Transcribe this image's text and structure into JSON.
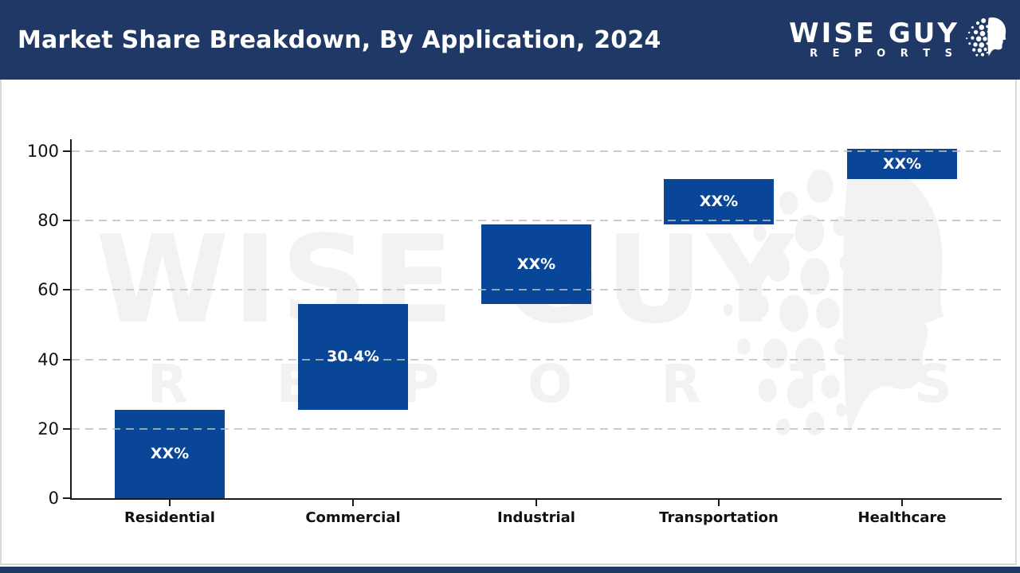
{
  "header": {
    "title": "Market Share Breakdown, By Application, 2024",
    "logo": {
      "line1": "WISE GUY",
      "line2": "R E P O R T S"
    }
  },
  "watermark": {
    "line1": "WISE GUY",
    "line2": "R E P O R T S"
  },
  "colors": {
    "header_bg": "#1f3865",
    "footer_bg": "#1f3865",
    "bar": "#0a4697",
    "gridline": "#d9d9d9",
    "watermark": "#f2f2f4",
    "axis": "#1a1a1a",
    "bar_label_text": "#ffffff",
    "title_text": "#ffffff"
  },
  "chart_data": {
    "type": "bar",
    "subtype": "waterfall",
    "title": "Market Share Breakdown, By Application, 2024",
    "xlabel": "",
    "ylabel": "",
    "categories": [
      "Residential",
      "Commercial",
      "Industrial",
      "Transportation",
      "Healthcare"
    ],
    "segments": [
      {
        "category": "Residential",
        "start": 0,
        "end": 25.5,
        "value_label": "XX%",
        "value_est": 25.5
      },
      {
        "category": "Commercial",
        "start": 25.5,
        "end": 56,
        "value_label": "30.4%",
        "value_est": 30.4
      },
      {
        "category": "Industrial",
        "start": 56,
        "end": 79,
        "value_label": "XX%",
        "value_est": 23
      },
      {
        "category": "Transportation",
        "start": 79,
        "end": 92,
        "value_label": "XX%",
        "value_est": 13
      },
      {
        "category": "Healthcare",
        "start": 92,
        "end": 100.7,
        "value_label": "XX%",
        "value_est": 8.7
      }
    ],
    "y_ticks": [
      0,
      20,
      40,
      60,
      80,
      100
    ],
    "y_tick_labels": [
      "0",
      "20",
      "40",
      "60",
      "80",
      "100"
    ],
    "ylim": [
      0,
      105
    ],
    "grid": "dashed horizontal lines at y ticks, drawn over bars",
    "legend": "none"
  }
}
